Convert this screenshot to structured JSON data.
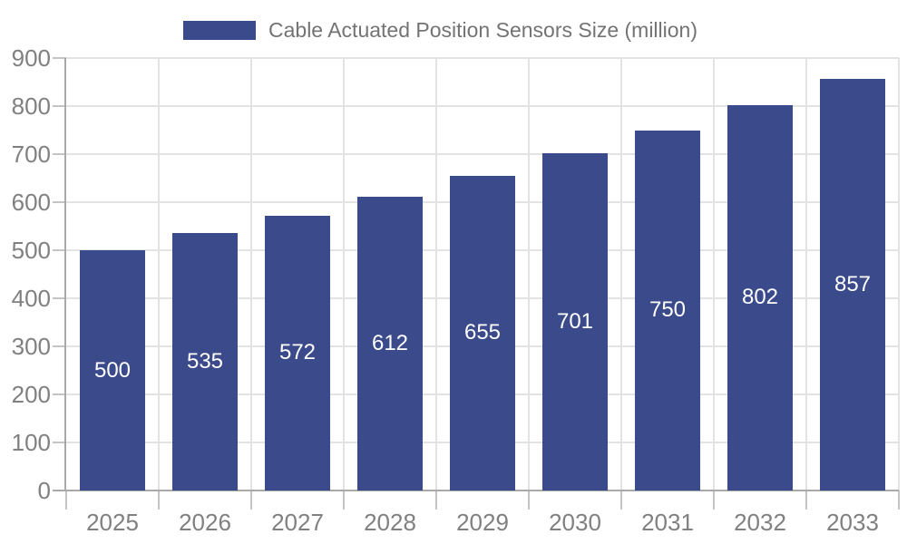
{
  "chart_data": {
    "type": "bar",
    "title": "Cable Actuated Position Sensors Size (million)",
    "categories": [
      "2025",
      "2026",
      "2027",
      "2028",
      "2029",
      "2030",
      "2031",
      "2032",
      "2033"
    ],
    "values": [
      500,
      535,
      572,
      612,
      655,
      701,
      750,
      802,
      857
    ],
    "xlabel": "",
    "ylabel": "",
    "ylim": [
      0,
      900
    ],
    "yticks": [
      0,
      100,
      200,
      300,
      400,
      500,
      600,
      700,
      800,
      900
    ],
    "grid": true,
    "bar_labels_inside": true,
    "legend": {
      "label": "Cable Actuated Position Sensors Size (million)",
      "position": "top"
    },
    "colors": {
      "bar": "#3B4A8A",
      "bar_label": "#FFFFFF",
      "axis_text": "#808080",
      "legend_text": "#737373",
      "grid_line": "#E3E3E3",
      "tick_line": "#C4C4C4",
      "axis_line": "#A9A9A9",
      "background": "#FFFFFF"
    }
  }
}
